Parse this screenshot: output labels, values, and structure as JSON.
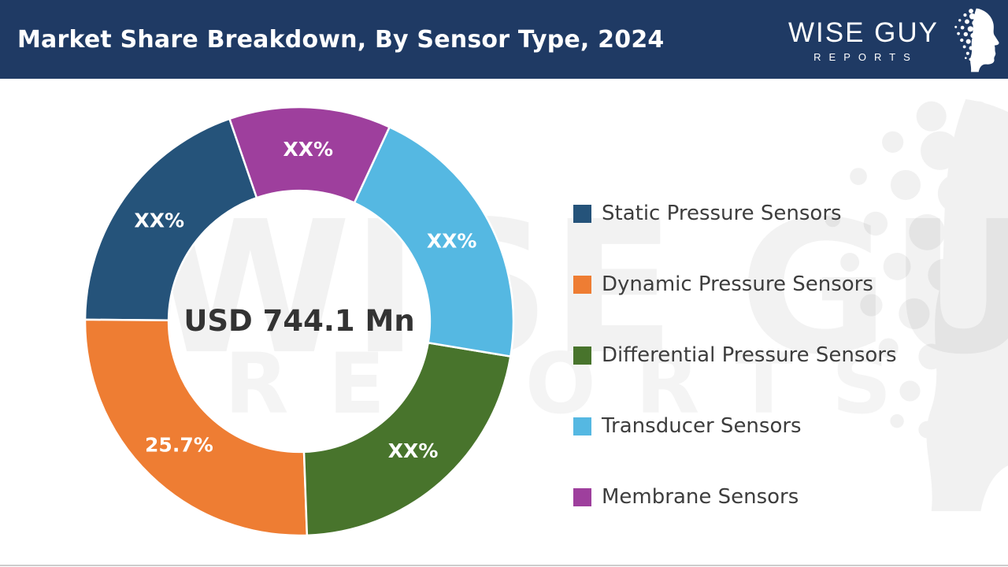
{
  "header": {
    "title": "Market Share Breakdown, By Sensor Type, 2024",
    "bg_color": "#1f3a64",
    "logo": {
      "line1": "WISE GUY",
      "line2": "REPORTS"
    }
  },
  "watermark": {
    "line1": "WISE GUY",
    "line2": "REPORTS"
  },
  "chart_data": {
    "type": "pie",
    "subtype": "donut",
    "title": "Market Share Breakdown, By Sensor Type, 2024",
    "center_label": "USD 744.1 Mn",
    "start_angle_deg": 109,
    "direction": "counterclockwise",
    "inner_radius_ratio": 0.61,
    "legend_position": "right",
    "label_color": "#ffffff",
    "segments": [
      {
        "name": "Static Pressure Sensors",
        "value_pct": 19.6,
        "display_label": "XX%",
        "color": "#25537a"
      },
      {
        "name": "Dynamic Pressure Sensors",
        "value_pct": 25.7,
        "display_label": "25.7%",
        "color": "#ee7d33"
      },
      {
        "name": "Differential Pressure Sensors",
        "value_pct": 21.8,
        "display_label": "XX%",
        "color": "#48742c"
      },
      {
        "name": "Transducer Sensors",
        "value_pct": 20.7,
        "display_label": "XX%",
        "color": "#55b8e2"
      },
      {
        "name": "Membrane Sensors",
        "value_pct": 12.2,
        "display_label": "XX%",
        "color": "#9e3f9d"
      }
    ]
  }
}
